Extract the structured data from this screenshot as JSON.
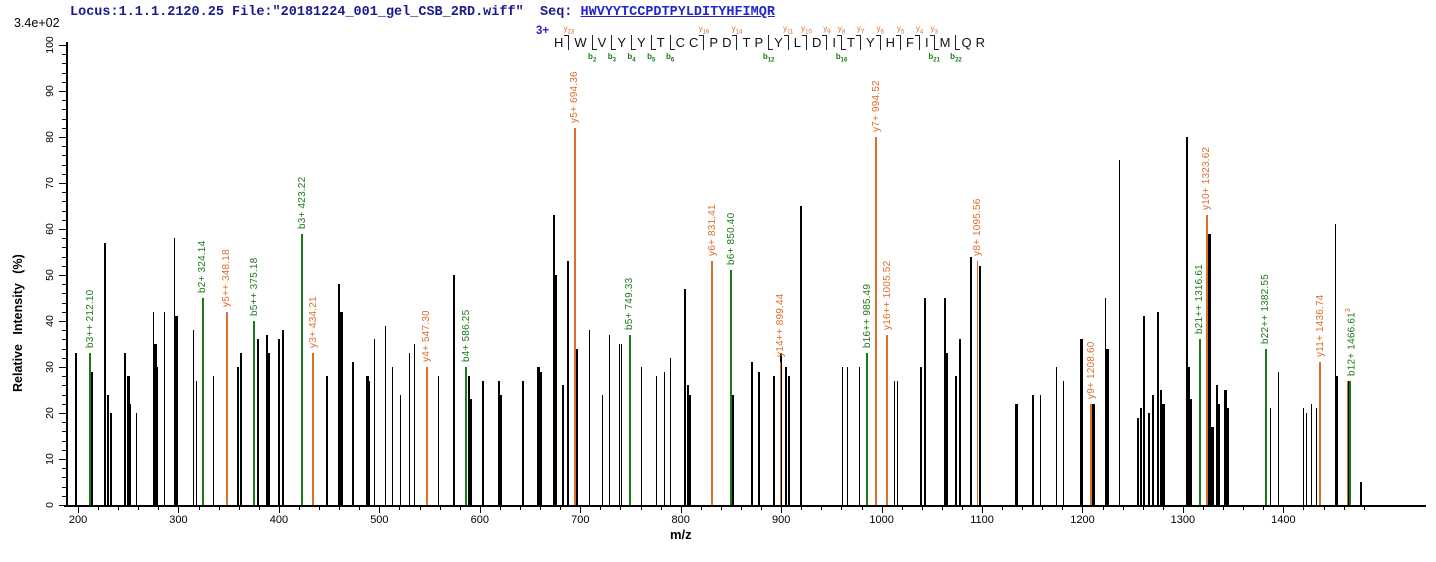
{
  "header": {
    "locus_file": "Locus:1.1.1.2120.25 File:\"20181224_001_gel_CSB_2RD.wiff\"",
    "seq_label": "Seq: ",
    "sequence": "HWVYYTCCPDTPYLDITYHFIMQR",
    "charge": "3+",
    "scale": "3.4e+02"
  },
  "axes": {
    "x_label": "m/z",
    "y_label": "Relative Intensity (%)",
    "x_tick_labels": [
      200,
      300,
      400,
      500,
      600,
      700,
      800,
      900,
      1000,
      1100,
      1200,
      1300,
      1400
    ],
    "x_minor_step": 20,
    "x_minor_extent": [
      200,
      1480
    ],
    "y_tick_labels": [
      0,
      10,
      20,
      30,
      40,
      50,
      60,
      70,
      80,
      90,
      100
    ],
    "y_minor_step": 2
  },
  "colors": {
    "y_ion": "#dc6e28",
    "b_ion": "#1a7a1a",
    "peak_black": "#000000",
    "header_navy": "#1a1a8c",
    "sequence_blue": "#2525cf"
  },
  "ladder": {
    "residues": "HWVYYTCCPDTPYLDITYHFIMQR",
    "markers": [
      {
        "after": 1,
        "y": "23"
      },
      {
        "after": 2,
        "b": "2"
      },
      {
        "after": 3,
        "b": "3"
      },
      {
        "after": 4,
        "b": "4"
      },
      {
        "after": 5,
        "b": "5"
      },
      {
        "after": 6,
        "b": "6"
      },
      {
        "after": 8,
        "y": "16"
      },
      {
        "after": 10,
        "y": "14"
      },
      {
        "after": 12,
        "b": "12"
      },
      {
        "after": 13,
        "y": "11"
      },
      {
        "after": 14,
        "y": "10"
      },
      {
        "after": 15,
        "y": "9"
      },
      {
        "after": 16,
        "y": "8",
        "b": "16"
      },
      {
        "after": 17,
        "y": "7"
      },
      {
        "after": 18,
        "y": "6"
      },
      {
        "after": 19,
        "y": "5"
      },
      {
        "after": 20,
        "y": "4"
      },
      {
        "after": 21,
        "y": "3",
        "b": "21"
      },
      {
        "after": 22,
        "b": "22"
      }
    ]
  },
  "chart_data": {
    "type": "bar",
    "subtype": "ms2-fragment-spectrum",
    "xlabel": "m/z",
    "ylabel": "Relative Intensity (%)",
    "x_range": [
      188,
      1540
    ],
    "ylim": [
      0,
      100
    ],
    "intensity_scale": "3.4e+02",
    "grid": false,
    "annotated_peaks": [
      {
        "label": "b3++ 212.10",
        "ion": "b3++",
        "mz": 212.1,
        "intensity_pct": 33,
        "series": "b"
      },
      {
        "label": "b2+ 324.14",
        "ion": "b2+",
        "mz": 324.14,
        "intensity_pct": 45,
        "series": "b"
      },
      {
        "label": "y5++ 348.18",
        "ion": "y5++",
        "mz": 348.18,
        "intensity_pct": 42,
        "series": "y"
      },
      {
        "label": "b5++ 375.18",
        "ion": "b5++",
        "mz": 375.18,
        "intensity_pct": 40,
        "series": "b"
      },
      {
        "label": "b3+ 423.22",
        "ion": "b3+",
        "mz": 423.22,
        "intensity_pct": 59,
        "series": "b"
      },
      {
        "label": "y3+ 434.21",
        "ion": "y3+",
        "mz": 434.21,
        "intensity_pct": 33,
        "series": "y"
      },
      {
        "label": "y4+ 547.30",
        "ion": "y4+",
        "mz": 547.3,
        "intensity_pct": 30,
        "series": "y"
      },
      {
        "label": "b4+ 586.25",
        "ion": "b4+",
        "mz": 586.25,
        "intensity_pct": 30,
        "series": "b"
      },
      {
        "label": "y5+ 694.36",
        "ion": "y5+",
        "mz": 694.36,
        "intensity_pct": 82,
        "series": "y"
      },
      {
        "label": "b5+ 749.33",
        "ion": "b5+",
        "mz": 749.33,
        "intensity_pct": 37,
        "series": "b"
      },
      {
        "label": "y6+ 831.41",
        "ion": "y6+",
        "mz": 831.41,
        "intensity_pct": 53,
        "series": "y"
      },
      {
        "label": "b6+ 850.40",
        "ion": "b6+",
        "mz": 850.4,
        "intensity_pct": 51,
        "series": "b"
      },
      {
        "label": "y14++ 899.44",
        "ion": "y14++",
        "mz": 899.44,
        "intensity_pct": 31,
        "series": "y"
      },
      {
        "label": "b16++ 985.49",
        "ion": "b16++",
        "mz": 985.49,
        "intensity_pct": 33,
        "series": "b"
      },
      {
        "label": "y7+ 994.52",
        "ion": "y7+",
        "mz": 994.52,
        "intensity_pct": 80,
        "series": "y"
      },
      {
        "label": "y16++ 1005.52",
        "ion": "y16++",
        "mz": 1005.52,
        "intensity_pct": 37,
        "series": "y"
      },
      {
        "label": "y8+ 1095.56",
        "ion": "y8+",
        "mz": 1095.56,
        "intensity_pct": 53,
        "series": "y"
      },
      {
        "label": "y9+ 1208.60",
        "ion": "y9+",
        "mz": 1208.6,
        "intensity_pct": 22,
        "series": "y"
      },
      {
        "label": "b21++ 1316.61",
        "ion": "b21++",
        "mz": 1316.61,
        "intensity_pct": 36,
        "series": "b"
      },
      {
        "label": "y10+ 1323.62",
        "ion": "y10+",
        "mz": 1323.62,
        "intensity_pct": 63,
        "series": "y"
      },
      {
        "label": "b22++ 1382.55",
        "ion": "b22++",
        "mz": 1382.55,
        "intensity_pct": 34,
        "series": "b"
      },
      {
        "label": "y11+ 1436.74",
        "ion": "y11+",
        "mz": 1436.74,
        "intensity_pct": 31,
        "series": "y"
      },
      {
        "label": "b12+ 1466.61",
        "ion": "b12+",
        "mz": 1466.61,
        "intensity_pct": 27,
        "series": "b",
        "suffix": "3"
      }
    ],
    "extra_colored_peaks": [
      {
        "mz": 1464.0,
        "intensity_pct": 27,
        "series": "y"
      }
    ],
    "peaks_mz_pct_width": [
      [
        198,
        33
      ],
      [
        214,
        29
      ],
      [
        227,
        57
      ],
      [
        230,
        24
      ],
      [
        233,
        20
      ],
      [
        247,
        33
      ],
      [
        250,
        28,
        3
      ],
      [
        252,
        22
      ],
      [
        258,
        20
      ],
      [
        275,
        42
      ],
      [
        277,
        35,
        3
      ],
      [
        279,
        30
      ],
      [
        286,
        42
      ],
      [
        296,
        58
      ],
      [
        298,
        41,
        3
      ],
      [
        315,
        38
      ],
      [
        318,
        27
      ],
      [
        335,
        28
      ],
      [
        359,
        30
      ],
      [
        362,
        33
      ],
      [
        379,
        36
      ],
      [
        388,
        37
      ],
      [
        390,
        33
      ],
      [
        400,
        36
      ],
      [
        404,
        38
      ],
      [
        448,
        28
      ],
      [
        460,
        48
      ],
      [
        462,
        42,
        3
      ],
      [
        474,
        31
      ],
      [
        488,
        28,
        3
      ],
      [
        490,
        27
      ],
      [
        495,
        36
      ],
      [
        506,
        39
      ],
      [
        513,
        30
      ],
      [
        521,
        24
      ],
      [
        530,
        33
      ],
      [
        535,
        35
      ],
      [
        559,
        28
      ],
      [
        574,
        50
      ],
      [
        589,
        28
      ],
      [
        591,
        23,
        3
      ],
      [
        603,
        27
      ],
      [
        619,
        27
      ],
      [
        621,
        24
      ],
      [
        643,
        27
      ],
      [
        658,
        30,
        3
      ],
      [
        661,
        29
      ],
      [
        674,
        63
      ],
      [
        676,
        50
      ],
      [
        683,
        26
      ],
      [
        688,
        53
      ],
      [
        697,
        34
      ],
      [
        709,
        38
      ],
      [
        722,
        24
      ],
      [
        729,
        37
      ],
      [
        739,
        35
      ],
      [
        741,
        35
      ],
      [
        761,
        30
      ],
      [
        776,
        28
      ],
      [
        784,
        29
      ],
      [
        790,
        32
      ],
      [
        804,
        47
      ],
      [
        807,
        26
      ],
      [
        809,
        24
      ],
      [
        852,
        24,
        3
      ],
      [
        871,
        31
      ],
      [
        878,
        29
      ],
      [
        893,
        28
      ],
      [
        900,
        33
      ],
      [
        905,
        30
      ],
      [
        908,
        28
      ],
      [
        920,
        65
      ],
      [
        961,
        30
      ],
      [
        966,
        30
      ],
      [
        978,
        30
      ],
      [
        1013,
        27
      ],
      [
        1016,
        27
      ],
      [
        1039,
        30
      ],
      [
        1043,
        45
      ],
      [
        1063,
        45
      ],
      [
        1065,
        33
      ],
      [
        1074,
        28
      ],
      [
        1078,
        36
      ],
      [
        1089,
        54
      ],
      [
        1098,
        52
      ],
      [
        1134,
        22,
        3
      ],
      [
        1151,
        24
      ],
      [
        1158,
        24
      ],
      [
        1174,
        30
      ],
      [
        1181,
        27
      ],
      [
        1199,
        36,
        3
      ],
      [
        1211,
        22,
        3
      ],
      [
        1223,
        45
      ],
      [
        1225,
        34,
        3
      ],
      [
        1237,
        75
      ],
      [
        1255,
        19
      ],
      [
        1258,
        21
      ],
      [
        1261,
        41
      ],
      [
        1266,
        20
      ],
      [
        1270,
        24
      ],
      [
        1275,
        42
      ],
      [
        1278,
        25
      ],
      [
        1281,
        22,
        3
      ],
      [
        1304,
        80
      ],
      [
        1306,
        30
      ],
      [
        1308,
        23
      ],
      [
        1326,
        59,
        3
      ],
      [
        1329,
        17,
        3
      ],
      [
        1334,
        26
      ],
      [
        1336,
        22
      ],
      [
        1342,
        25,
        3
      ],
      [
        1345,
        21
      ],
      [
        1387,
        21
      ],
      [
        1395,
        29
      ],
      [
        1420,
        21
      ],
      [
        1423,
        20
      ],
      [
        1428,
        22
      ],
      [
        1433,
        21
      ],
      [
        1452,
        61
      ],
      [
        1453,
        28,
        3
      ],
      [
        1465,
        27,
        3
      ],
      [
        1477,
        5
      ]
    ]
  }
}
